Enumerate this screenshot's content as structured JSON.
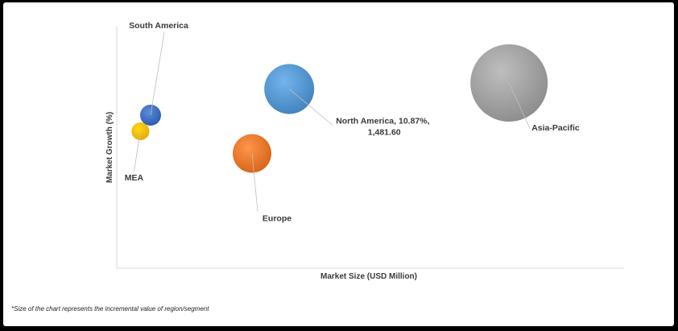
{
  "chart_data": {
    "type": "scatter",
    "variant": "bubble",
    "title": "",
    "xlabel": "Market Size (USD Million)",
    "ylabel": "Market Growth (%)",
    "grid": false,
    "legend": "none",
    "bubble_size_encodes": "incremental value of region/segment",
    "series": [
      {
        "label": "South America",
        "x": 10,
        "y": 7.6,
        "size": 13,
        "color": "#4472c4"
      },
      {
        "label": "MEA",
        "x": 7,
        "y": 6.8,
        "size": 11,
        "color": "#ffc000"
      },
      {
        "label": "Europe",
        "x": 40,
        "y": 5.7,
        "size": 24,
        "color": "#ed7d31"
      },
      {
        "label": "North America, 10.87%,|1,481.60",
        "x": 51,
        "y": 8.9,
        "size": 31,
        "color": "#5b9bd5"
      },
      {
        "label": "Asia-Pacific",
        "x": 116,
        "y": 9.2,
        "size": 48,
        "color": "#a5a5a5"
      }
    ],
    "xlim": [
      0,
      150
    ],
    "ylim": [
      0,
      12
    ]
  },
  "footnote": "*Size of the chart represents the incremental value of region/segment"
}
